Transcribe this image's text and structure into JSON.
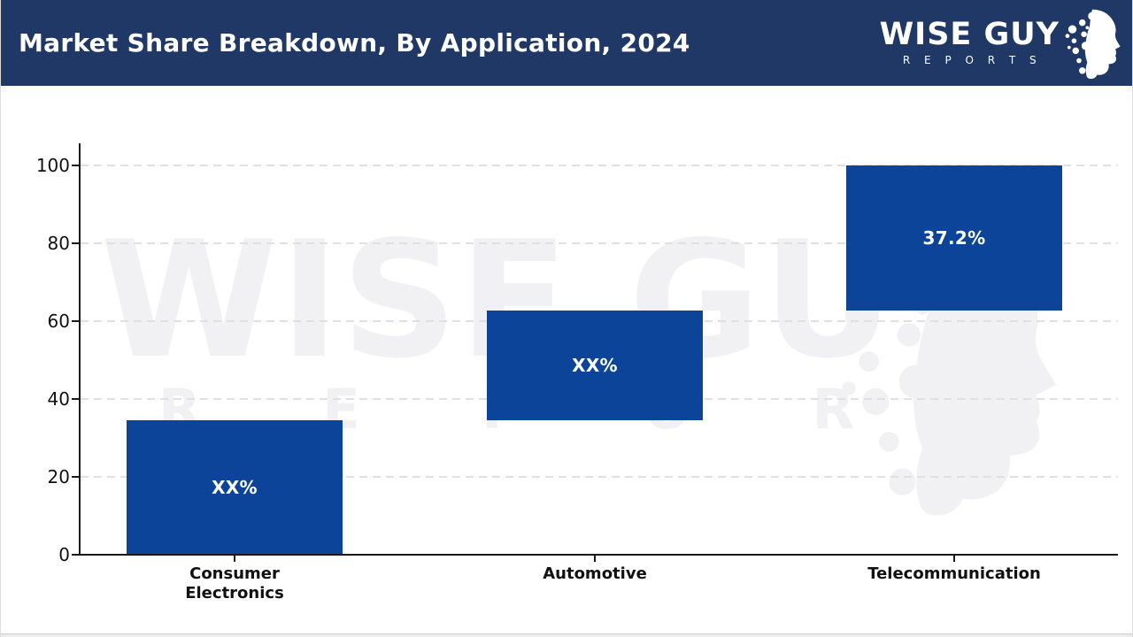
{
  "header": {
    "title": "Market Share Breakdown, By Application, 2024",
    "bg_color": "#1f3865",
    "logo_line1": "WISE GUY",
    "logo_line2": "R E P O R T S"
  },
  "watermark": {
    "line1": "WISE GUY",
    "line2": "R E P O R T S"
  },
  "chart_data": {
    "type": "bar",
    "subtype": "waterfall-segments",
    "title": "Market Share Breakdown, By Application, 2024",
    "categories": [
      "Consumer Electronics",
      "Automotive",
      "Telecommunication"
    ],
    "bars": [
      {
        "category": "Consumer Electronics",
        "category_display": "Consumer\nElectronics",
        "start": 0,
        "end": 34.5,
        "height": 34.5,
        "label": "XX%"
      },
      {
        "category": "Automotive",
        "category_display": "Automotive",
        "start": 34.5,
        "end": 62.8,
        "height": 28.3,
        "label": "XX%"
      },
      {
        "category": "Telecommunication",
        "category_display": "Telecommunication",
        "start": 62.8,
        "end": 100,
        "height": 37.2,
        "label": "37.2%"
      }
    ],
    "yticks": [
      0,
      20,
      40,
      60,
      80,
      100
    ],
    "ylim": [
      0,
      106
    ],
    "xlabel": "",
    "ylabel": "",
    "grid": "horizontal-dashed",
    "legend": "none",
    "bar_color": "#0b4499",
    "bar_label_color": "#ffffff",
    "grid_color": "#e0e0e0",
    "axis_color": "#1a1a1a"
  }
}
